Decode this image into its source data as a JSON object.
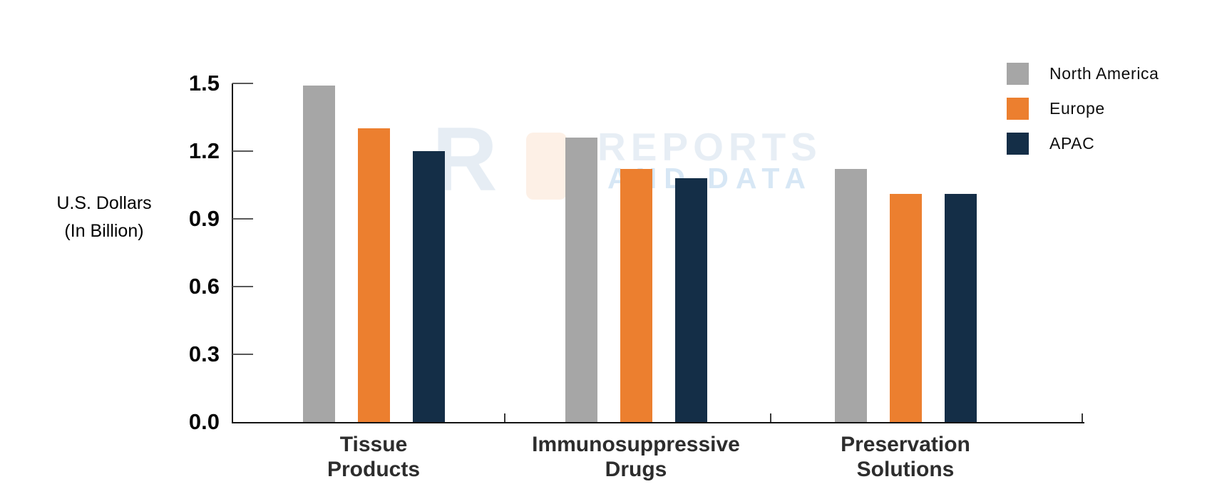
{
  "chart_data": {
    "type": "bar",
    "title": "",
    "ylabel": "U.S. Dollars\n(In Billion)",
    "categories": [
      "Tissue\nProducts",
      "Immunosuppressive\nDrugs",
      "Preservation\nSolutions"
    ],
    "series": [
      {
        "name": "North America",
        "color": "#A6A6A6",
        "values": [
          1.49,
          1.26,
          1.12
        ]
      },
      {
        "name": "Europe",
        "color": "#EC7F2F",
        "values": [
          1.3,
          1.12,
          1.01
        ]
      },
      {
        "name": "APAC",
        "color": "#142E47",
        "values": [
          1.2,
          1.08,
          1.01
        ]
      }
    ],
    "y_ticks": [
      0.0,
      0.3,
      0.6,
      0.9,
      1.2,
      1.5
    ],
    "ylim": [
      0,
      1.5
    ],
    "grid": false,
    "legend_position": "top-right"
  },
  "watermark": {
    "logo_letter": "R",
    "line1": "REPORTS",
    "line2": "AND DATA"
  }
}
